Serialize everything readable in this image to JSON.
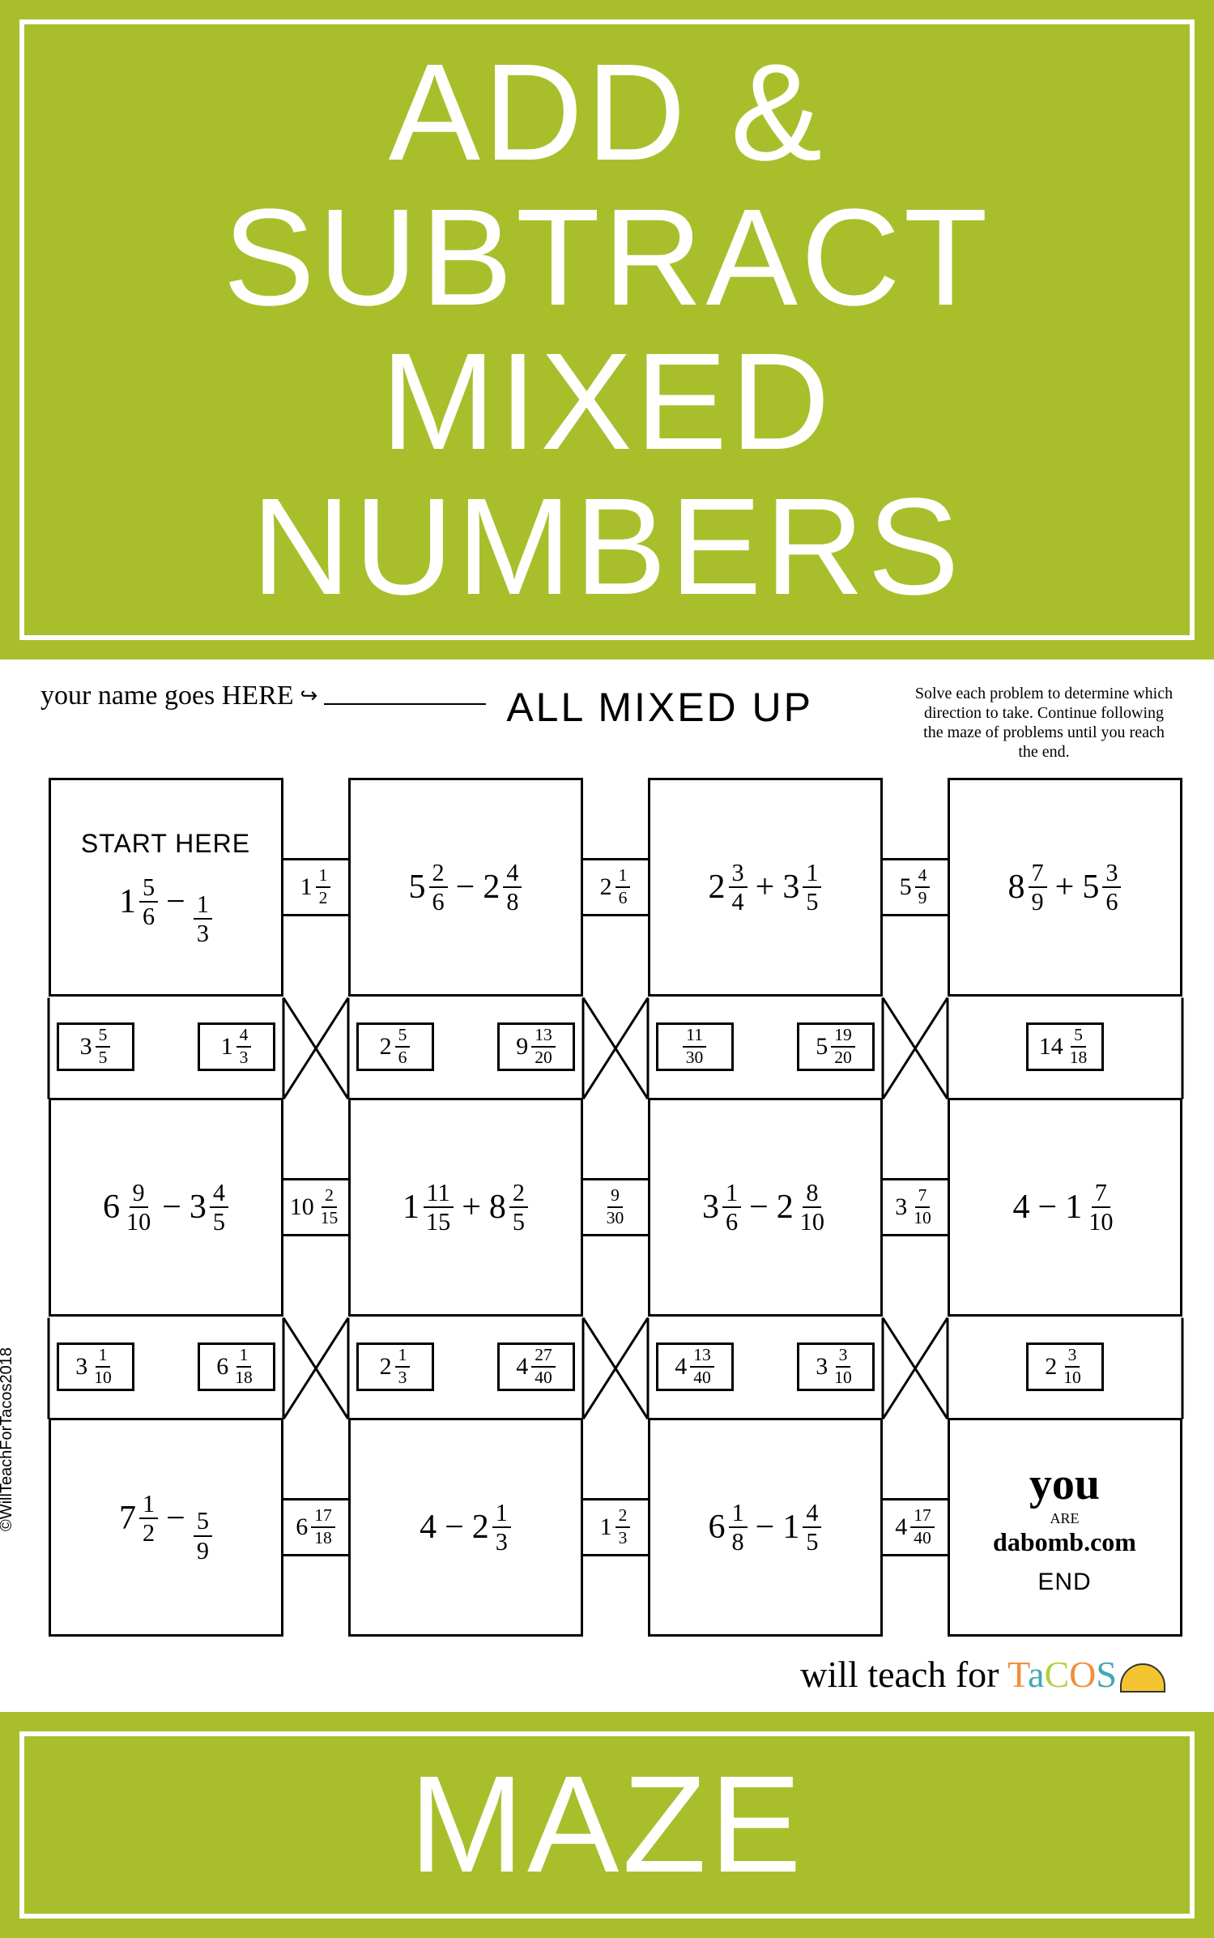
{
  "colors": {
    "banner_bg": "#a9be2b",
    "banner_text": "#ffffff",
    "ink": "#000000",
    "brand_orange": "#f08f3c",
    "brand_teal": "#41a8b5",
    "brand_lime": "#b5cf3f"
  },
  "top_banner": {
    "line1": "ADD & SUBTRACT",
    "line2": "MIXED NUMBERS"
  },
  "bottom_banner": {
    "text": "MAZE"
  },
  "worksheet": {
    "name_label": "your\nname\ngoes HERE",
    "title": "ALL MIXED UP",
    "instructions": "Solve each problem to determine which direction to take. Continue following the maze of problems until you reach the end.",
    "copyright": "©WillTeachForTacos2018",
    "brand": "will teach for Tacos"
  },
  "cells": {
    "r0c0": {
      "label": "START HERE",
      "expr": [
        {
          "w": "1",
          "n": "5",
          "d": "6"
        },
        "−",
        {
          "n": "1",
          "d": "3"
        }
      ]
    },
    "r0c1": {
      "expr": [
        {
          "w": "5",
          "n": "2",
          "d": "6"
        },
        "−",
        {
          "w": "2",
          "n": "4",
          "d": "8"
        }
      ]
    },
    "r0c2": {
      "expr": [
        {
          "w": "2",
          "n": "3",
          "d": "4"
        },
        "+",
        {
          "w": "3",
          "n": "1",
          "d": "5"
        }
      ]
    },
    "r0c3": {
      "expr": [
        {
          "w": "8",
          "n": "7",
          "d": "9"
        },
        "+",
        {
          "w": "5",
          "n": "3",
          "d": "6"
        }
      ]
    },
    "r1c0": {
      "expr": [
        {
          "w": "6",
          "n": "9",
          "d": "10"
        },
        "−",
        {
          "w": "3",
          "n": "4",
          "d": "5"
        }
      ]
    },
    "r1c1": {
      "expr": [
        {
          "w": "1",
          "n": "11",
          "d": "15"
        },
        "+",
        {
          "w": "8",
          "n": "2",
          "d": "5"
        }
      ]
    },
    "r1c2": {
      "expr": [
        {
          "w": "3",
          "n": "1",
          "d": "6"
        },
        "−",
        {
          "w": "2",
          "n": "8",
          "d": "10"
        }
      ]
    },
    "r1c3": {
      "expr": [
        {
          "w": "4"
        },
        "−",
        {
          "w": "1",
          "n": "7",
          "d": "10"
        }
      ]
    },
    "r2c0": {
      "expr": [
        {
          "w": "7",
          "n": "1",
          "d": "2"
        },
        "−",
        {
          "n": "5",
          "d": "9"
        }
      ]
    },
    "r2c1": {
      "expr": [
        {
          "w": "4"
        },
        "−",
        {
          "w": "2",
          "n": "1",
          "d": "3"
        }
      ]
    },
    "r2c2": {
      "expr": [
        {
          "w": "6",
          "n": "1",
          "d": "8"
        },
        "−",
        {
          "w": "1",
          "n": "4",
          "d": "5"
        }
      ]
    },
    "r2c3": {
      "you": "you",
      "are": "ARE",
      "dabomb": "dabomb.com",
      "end": "END"
    }
  },
  "connectors": {
    "h_r0_01": {
      "w": "1",
      "n": "1",
      "d": "2"
    },
    "h_r0_12": {
      "w": "2",
      "n": "1",
      "d": "6"
    },
    "h_r0_23": {
      "w": "5",
      "n": "4",
      "d": "9"
    },
    "h_r1_01": {
      "w": "10",
      "n": "2",
      "d": "15"
    },
    "h_r1_12": {
      "n": "9",
      "d": "30"
    },
    "h_r1_23": {
      "w": "3",
      "n": "7",
      "d": "10"
    },
    "h_r2_01": {
      "w": "6",
      "n": "17",
      "d": "18"
    },
    "h_r2_12": {
      "w": "1",
      "n": "2",
      "d": "3"
    },
    "h_r2_23": {
      "w": "4",
      "n": "17",
      "d": "40"
    },
    "v_c0_r01_l": {
      "w": "3",
      "n": "5",
      "d": "5"
    },
    "v_c0_r01_r": {
      "w": "1",
      "n": "4",
      "d": "3"
    },
    "v_c1_r01_l": {
      "w": "2",
      "n": "5",
      "d": "6"
    },
    "v_c1_r01_r": {
      "w": "9",
      "n": "13",
      "d": "20"
    },
    "v_c2_r01_l": {
      "n": "11",
      "d": "30"
    },
    "v_c2_r01_r": {
      "w": "5",
      "n": "19",
      "d": "20"
    },
    "v_c3_r01": {
      "w": "14",
      "n": "5",
      "d": "18"
    },
    "v_c0_r12_l": {
      "w": "3",
      "n": "1",
      "d": "10"
    },
    "v_c0_r12_r": {
      "w": "6",
      "n": "1",
      "d": "18"
    },
    "v_c1_r12_l": {
      "w": "2",
      "n": "1",
      "d": "3"
    },
    "v_c1_r12_r": {
      "w": "4",
      "n": "27",
      "d": "40"
    },
    "v_c2_r12_l": {
      "w": "4",
      "n": "13",
      "d": "40"
    },
    "v_c2_r12_r": {
      "w": "3",
      "n": "3",
      "d": "10"
    },
    "v_c3_r12": {
      "w": "2",
      "n": "3",
      "d": "10"
    }
  }
}
